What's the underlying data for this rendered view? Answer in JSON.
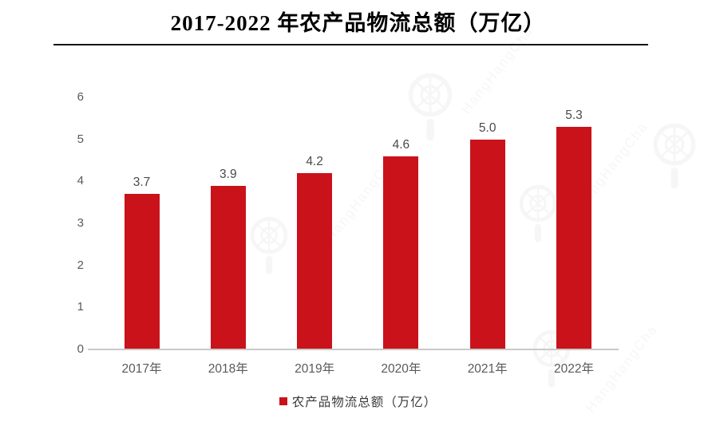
{
  "header": {
    "title": "2017-2022 年农产品物流总额（万亿）"
  },
  "chart_data": {
    "type": "bar",
    "title": "2017-2022 年农产品物流总额（万亿）",
    "categories": [
      "2017年",
      "2018年",
      "2019年",
      "2020年",
      "2021年",
      "2022年"
    ],
    "values": [
      3.7,
      3.9,
      4.2,
      4.6,
      5.0,
      5.3
    ],
    "value_labels": [
      "3.7",
      "3.9",
      "4.2",
      "4.6",
      "5.0",
      "5.3"
    ],
    "series_name": "农产品物流总额（万亿）",
    "y_ticks": [
      "0",
      "1",
      "2",
      "3",
      "4",
      "5",
      "6"
    ],
    "ylim": [
      0,
      6
    ],
    "xlabel": "",
    "ylabel": "",
    "grid": false,
    "legend_position": "bottom",
    "colors": {
      "bar": "#c9121a",
      "value_label": "#4a4a4a",
      "tick_label": "#5a5a5a",
      "axis_line": "#c9c9c9",
      "title": "#000000"
    }
  },
  "legend": {
    "label": "农产品物流总额（万亿）",
    "marker_color": "#c9121a"
  },
  "watermark": {
    "text": "HangHangCha"
  }
}
